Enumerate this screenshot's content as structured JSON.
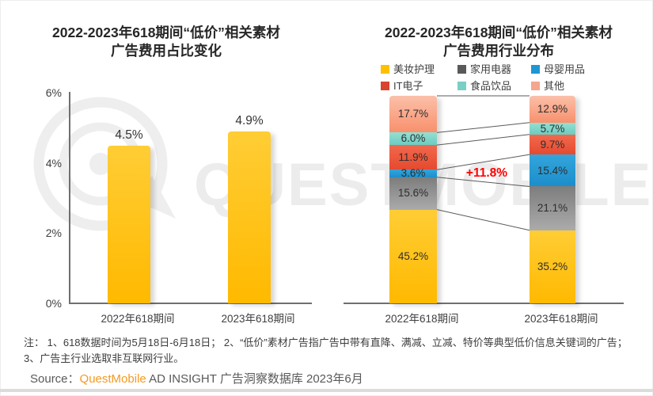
{
  "watermark": {
    "text": "QUESTMOBILE",
    "color": "#ECECEC"
  },
  "chart_data": [
    {
      "type": "bar",
      "title": "2022-2023年618期间“低价”相关素材广告费用占比变化",
      "title_lines": [
        "2022-2023年618期间“低价”相关素材",
        "广告费用占比变化"
      ],
      "categories": [
        "2022年618期间",
        "2023年618期间"
      ],
      "values": [
        4.5,
        4.9
      ],
      "unit": "%",
      "ylim": [
        0,
        6
      ],
      "yticks": [
        0,
        2,
        4,
        6
      ],
      "grid": false,
      "legend": "none",
      "bar_gradient": [
        "#FFCD35",
        "#FFB900"
      ]
    },
    {
      "type": "stacked-bar",
      "title": "2022-2023年618期间“低价”相关素材广告费用行业分布",
      "title_lines": [
        "2022-2023年618期间“低价”相关素材",
        "广告费用行业分布"
      ],
      "categories": [
        "2022年618期间",
        "2023年618期间"
      ],
      "unit": "%",
      "ylim": [
        0,
        100
      ],
      "legend_position": "top",
      "legend_order": [
        "美妆护理",
        "家用电器",
        "母婴用品",
        "IT电子",
        "食品饮品",
        "其他"
      ],
      "series": [
        {
          "name": "其他",
          "slug": "others",
          "values": [
            17.7,
            12.9
          ],
          "legend_color": "#F5A68E",
          "gradient": [
            "#FBC0AA",
            "#F8906C"
          ]
        },
        {
          "name": "食品饮品",
          "slug": "food-beverage",
          "values": [
            6.0,
            5.7
          ],
          "legend_color": "#7BCFC5",
          "gradient": [
            "#97DED2",
            "#6BCCC0"
          ]
        },
        {
          "name": "IT电子",
          "slug": "it-electronics",
          "values": [
            11.9,
            9.7
          ],
          "legend_color": "#D8442D",
          "gradient": [
            "#F2694E",
            "#E54A2F"
          ]
        },
        {
          "name": "母婴用品",
          "slug": "maternal-baby",
          "values": [
            3.6,
            15.4
          ],
          "legend_color": "#1F96D4",
          "gradient": [
            "#34A5DC",
            "#1B8ECB"
          ]
        },
        {
          "name": "家用电器",
          "slug": "home-appliances",
          "values": [
            15.6,
            21.1
          ],
          "legend_color": "#595959",
          "gradient": [
            "#7D7D7D",
            "#ABABAB"
          ]
        },
        {
          "name": "美妆护理",
          "slug": "beauty-care",
          "values": [
            45.2,
            35.2
          ],
          "legend_color": "#FFC000",
          "gradient": [
            "#FFCD35",
            "#FFB900"
          ]
        }
      ],
      "annotation": {
        "text": "+11.8%",
        "color": "#FF0000"
      }
    }
  ],
  "notes": "注：  1、618数据时间为5月18日-6月18日；  2、“低价”素材广告指广告中带有直降、满减、立减、特价等典型低价信息关键词的广告；  3、广告主行业选取非互联网行业。",
  "source": {
    "prefix": "Source：",
    "brand": "QuestMobile",
    "suffix": " AD INSIGHT 广告洞察数据库 2023年6月",
    "brand_color": "#F59A23"
  }
}
